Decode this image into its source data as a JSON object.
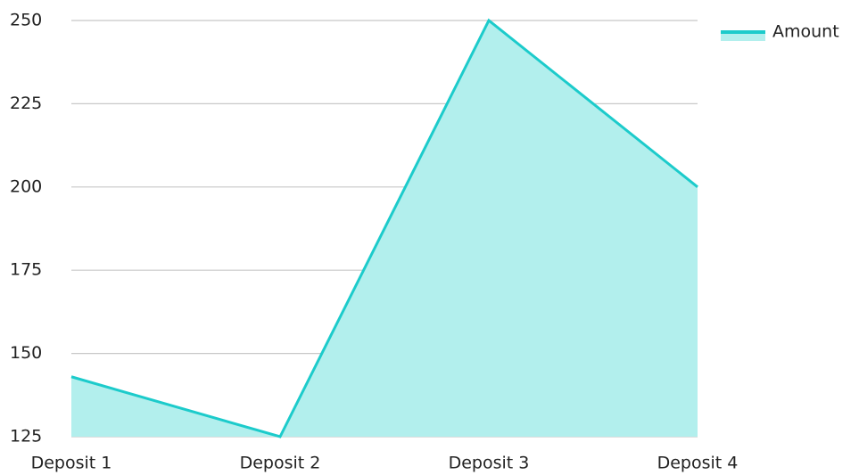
{
  "chart_data": {
    "type": "area",
    "categories": [
      "Deposit 1",
      "Deposit 2",
      "Deposit 3",
      "Deposit 4"
    ],
    "series": [
      {
        "name": "Amount",
        "color": "#1ccbcb",
        "fill": "#b2efed",
        "values": [
          143,
          125,
          250,
          200
        ]
      }
    ],
    "ylim": [
      125,
      250
    ],
    "yticks": [
      125,
      150,
      175,
      200,
      225,
      250
    ],
    "grid": true,
    "legend": "top-right"
  }
}
